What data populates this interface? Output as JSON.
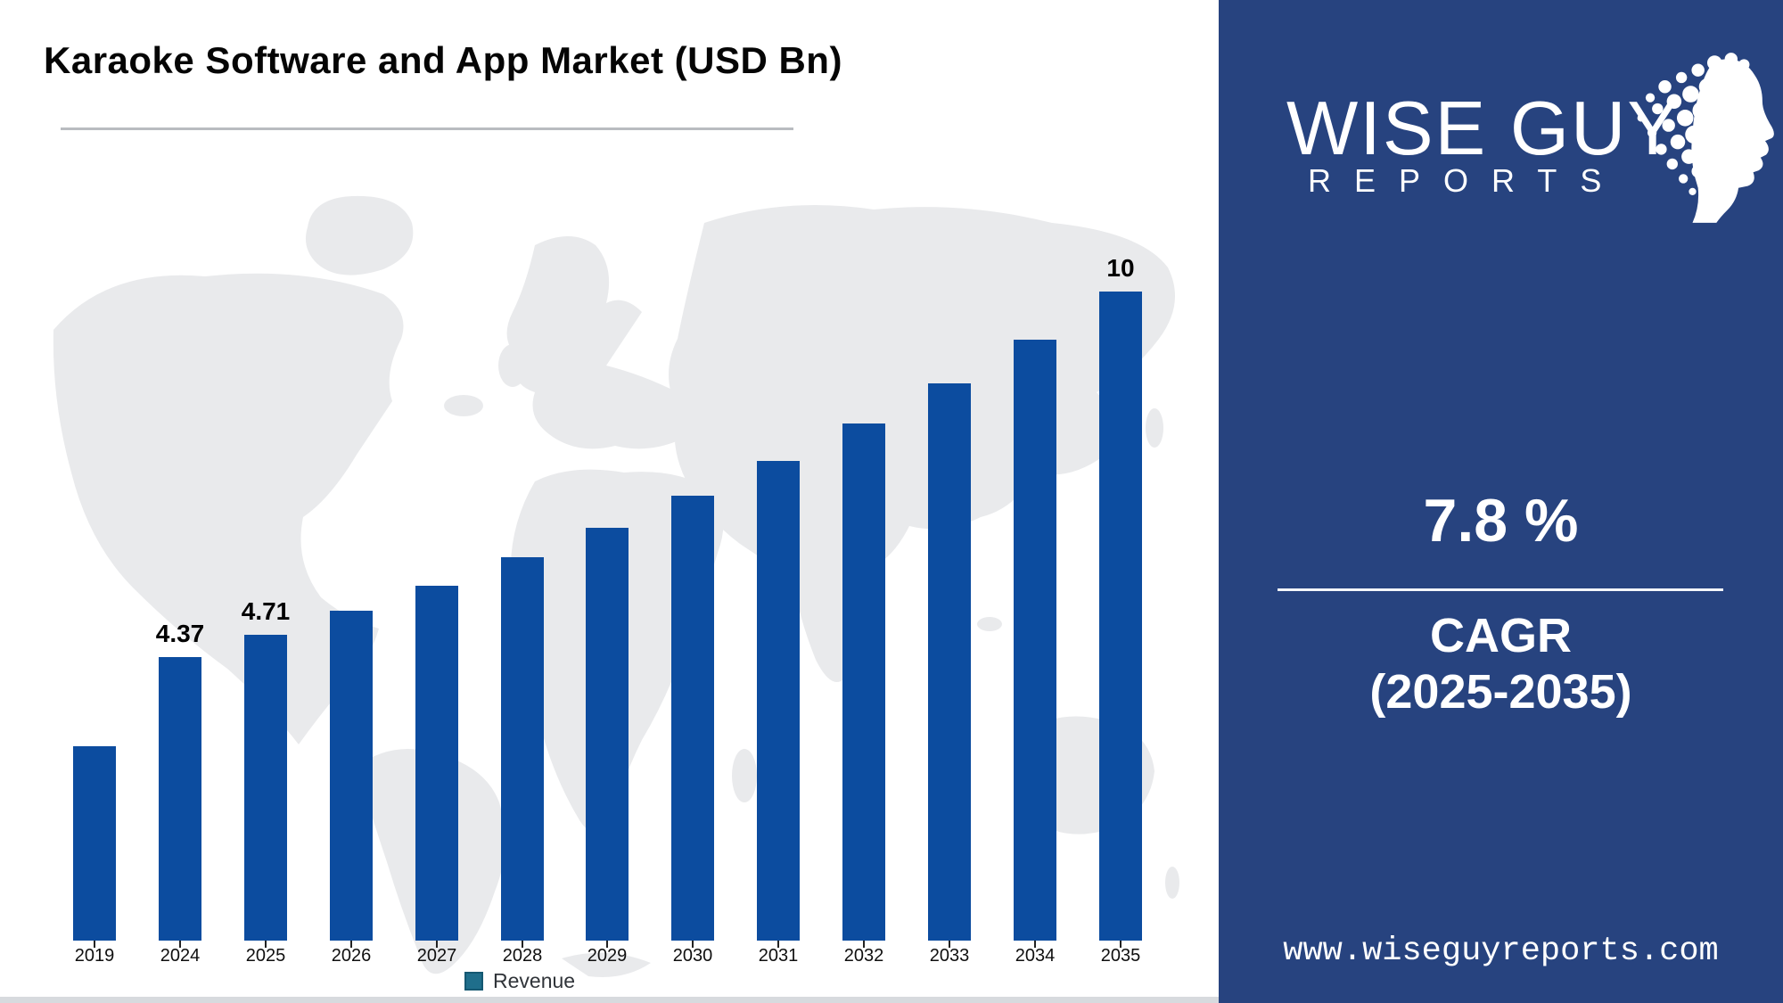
{
  "title": "Karaoke Software and App Market (USD Bn)",
  "chart_data": {
    "type": "bar",
    "title": "Karaoke Software and App Market (USD Bn)",
    "categories": [
      "2019",
      "2024",
      "2025",
      "2026",
      "2027",
      "2028",
      "2029",
      "2030",
      "2031",
      "2032",
      "2033",
      "2034",
      "2035"
    ],
    "series": [
      {
        "name": "Revenue",
        "values": [
          3.0,
          4.37,
          4.71,
          5.08,
          5.47,
          5.9,
          6.36,
          6.86,
          7.39,
          7.97,
          8.59,
          9.26,
          10
        ]
      }
    ],
    "data_labels": [
      "",
      "4.37",
      "4.71",
      "",
      "",
      "",
      "",
      "",
      "",
      "",
      "",
      "",
      "10"
    ],
    "xlabel": "",
    "ylabel": "",
    "ylim": [
      0,
      10.8
    ],
    "grid": false,
    "bar_color": "#0c4c9f",
    "legend": {
      "label": "Revenue",
      "swatch_color": "#1f6e8b",
      "position": "bottom"
    }
  },
  "sidebar": {
    "logo": {
      "line1": "WISE GUY",
      "line2": "REPORTS",
      "icon": "head-profile-dots"
    },
    "cagr_value": "7.8 %",
    "cagr_label_line1": "CAGR",
    "cagr_label_line2": "(2025-2035)",
    "website": "www.wiseguyreports.com",
    "background": "#27437f"
  }
}
